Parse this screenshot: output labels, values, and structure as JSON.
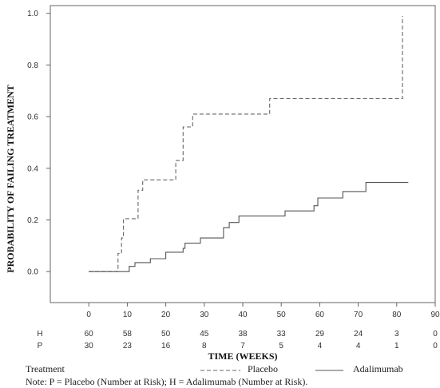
{
  "chart_data": {
    "type": "line",
    "xlabel": "TIME (WEEKS)",
    "ylabel": "PROBABILITY OF FAILING TREATMENT",
    "xlim": [
      -10,
      90
    ],
    "ylim": [
      -0.12,
      1.03
    ],
    "xticks": [
      0,
      10,
      20,
      30,
      40,
      50,
      60,
      70,
      80,
      90
    ],
    "yticks": [
      0.0,
      0.2,
      0.4,
      0.6,
      0.8,
      1.0
    ],
    "ytick_labels": [
      "0.0",
      "0.2",
      "0.4",
      "0.6",
      "0.8",
      "1.0"
    ],
    "grid": false,
    "series": [
      {
        "name": "Placebo",
        "style": "dashed",
        "color": "#666666",
        "x": [
          0,
          7,
          7.6,
          8.5,
          9,
          12,
          12.8,
          14,
          22,
          22.6,
          24,
          24.5,
          26,
          27,
          47,
          81.5,
          81.5
        ],
        "y": [
          0.0,
          0.0,
          0.07,
          0.13,
          0.205,
          0.205,
          0.315,
          0.355,
          0.355,
          0.43,
          0.43,
          0.56,
          0.56,
          0.61,
          0.67,
          0.67,
          0.99
        ]
      },
      {
        "name": "Adalimumab",
        "style": "solid",
        "color": "#555555",
        "x": [
          0,
          7,
          10.5,
          12,
          16,
          20,
          24.5,
          25,
          29,
          35,
          36.5,
          39,
          51,
          58.5,
          59.5,
          66,
          72,
          83
        ],
        "y": [
          0.0,
          0.0,
          0.02,
          0.035,
          0.05,
          0.075,
          0.09,
          0.11,
          0.13,
          0.17,
          0.19,
          0.215,
          0.235,
          0.255,
          0.285,
          0.31,
          0.345,
          0.345
        ]
      }
    ],
    "risk_table": {
      "rows": [
        {
          "label": "H",
          "values": [
            "60",
            "58",
            "50",
            "45",
            "38",
            "33",
            "29",
            "24",
            "3",
            "0"
          ]
        },
        {
          "label": "P",
          "values": [
            "30",
            "23",
            "16",
            "8",
            "7",
            "5",
            "4",
            "4",
            "1",
            "0"
          ]
        }
      ]
    },
    "legend": {
      "title": "Treatment",
      "position": "bottom",
      "entries": [
        {
          "label": "Placebo",
          "style": "dashed"
        },
        {
          "label": "Adalimumab",
          "style": "solid"
        }
      ]
    },
    "note": "Note: P = Placebo (Number at Risk); H = Adalimumab (Number at Risk)."
  }
}
